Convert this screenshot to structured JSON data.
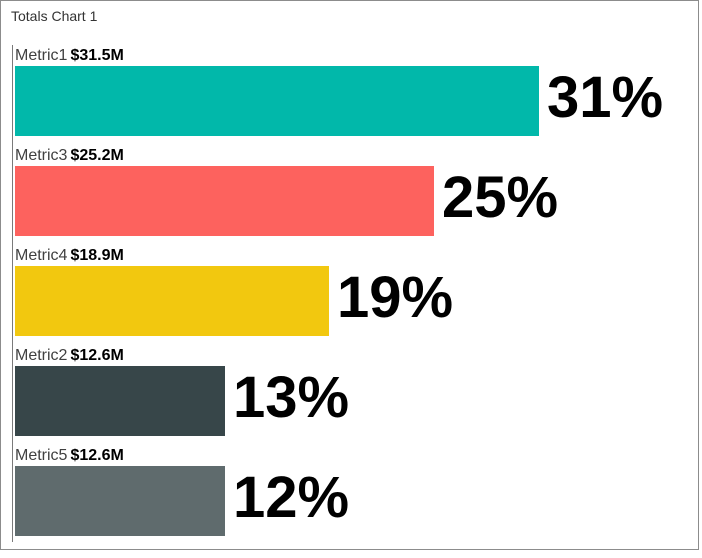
{
  "title": "Totals Chart 1",
  "chart_data": {
    "type": "bar",
    "orientation": "horizontal",
    "title": "Totals Chart 1",
    "categories": [
      "Metric1",
      "Metric3",
      "Metric4",
      "Metric2",
      "Metric5"
    ],
    "values": [
      31.5,
      25.2,
      18.9,
      12.6,
      12.6
    ],
    "value_labels": [
      "$31.5M",
      "$25.2M",
      "$18.9M",
      "$12.6M",
      "$12.6M"
    ],
    "percents": [
      31,
      25,
      19,
      13,
      12
    ],
    "percent_labels": [
      "31%",
      "25%",
      "19%",
      "13%",
      "12%"
    ],
    "colors": [
      "#01B8AA",
      "#FD625E",
      "#F2C80F",
      "#374649",
      "#5F6B6D"
    ],
    "xlim": [
      0,
      31.5
    ],
    "grid": false,
    "legend": "none",
    "axis_line_color": "#7a7a7a"
  }
}
